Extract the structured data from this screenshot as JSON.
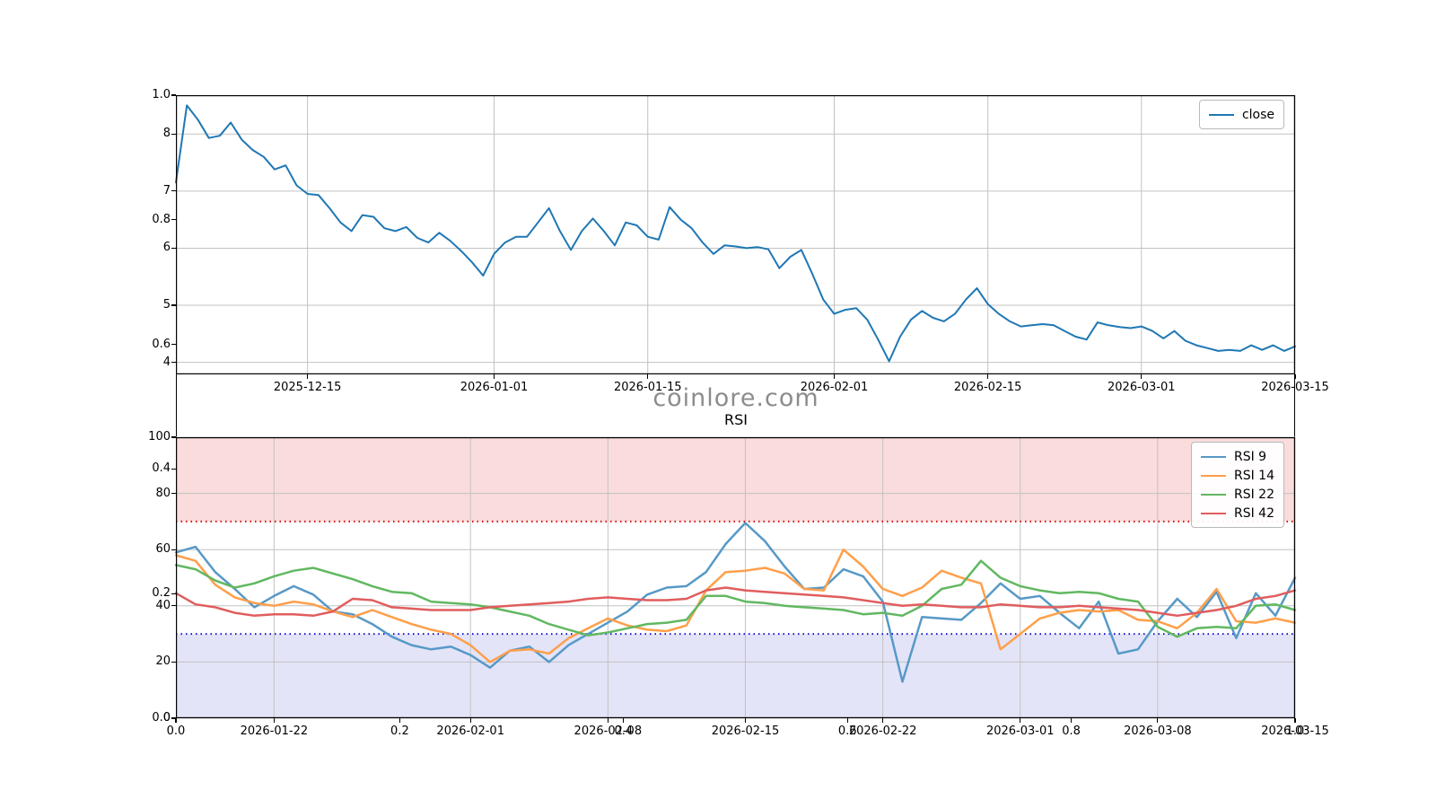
{
  "watermark": {
    "text": "coinlore.com"
  },
  "overlay_axis": {
    "xticks": [
      {
        "pos": 0.0,
        "label": "0.0"
      },
      {
        "pos": 0.2,
        "label": "0.2"
      },
      {
        "pos": 0.4,
        "label": "0.4"
      },
      {
        "pos": 0.6,
        "label": "0.6"
      },
      {
        "pos": 0.8,
        "label": "0.8"
      },
      {
        "pos": 1.0,
        "label": "1.0"
      }
    ],
    "yticks": [
      {
        "pos": 0.0,
        "label": "0.0"
      },
      {
        "pos": 0.2,
        "label": "0.2"
      },
      {
        "pos": 0.4,
        "label": "0.4"
      },
      {
        "pos": 0.6,
        "label": "0.6"
      },
      {
        "pos": 0.8,
        "label": "0.8"
      },
      {
        "pos": 1.0,
        "label": "1.0"
      }
    ]
  },
  "chart_data": [
    {
      "type": "line",
      "title": "",
      "x_start": "2025-12-03",
      "x_end": "2026-03-15",
      "x_freq": "daily",
      "grid": true,
      "legend_position": "upper right",
      "ylim": [
        3.79,
        8.68
      ],
      "xticks": [
        {
          "pos": 0.1176,
          "label": "2025-12-15"
        },
        {
          "pos": 0.2843,
          "label": "2026-01-01"
        },
        {
          "pos": 0.4216,
          "label": "2026-01-15"
        },
        {
          "pos": 0.5882,
          "label": "2026-02-01"
        },
        {
          "pos": 0.7255,
          "label": "2026-02-15"
        },
        {
          "pos": 0.8627,
          "label": "2026-03-01"
        },
        {
          "pos": 1.0,
          "label": "2026-03-15"
        }
      ],
      "yticks": [
        {
          "value": 4,
          "label": "4"
        },
        {
          "value": 5,
          "label": "5"
        },
        {
          "value": 6,
          "label": "6"
        },
        {
          "value": 7,
          "label": "7"
        },
        {
          "value": 8,
          "label": "8"
        }
      ],
      "legend": [
        {
          "label": "close",
          "color": "#1f77b4"
        }
      ],
      "series": [
        {
          "name": "close",
          "color": "#1f77b4",
          "width": 2,
          "values": [
            7.15,
            8.5,
            8.25,
            7.93,
            7.97,
            8.2,
            7.9,
            7.72,
            7.6,
            7.38,
            7.45,
            7.1,
            6.95,
            6.93,
            6.7,
            6.45,
            6.3,
            6.58,
            6.55,
            6.35,
            6.3,
            6.37,
            6.18,
            6.1,
            6.27,
            6.13,
            5.95,
            5.75,
            5.52,
            5.9,
            6.1,
            6.2,
            6.2,
            6.45,
            6.7,
            6.3,
            5.97,
            6.3,
            6.52,
            6.3,
            6.05,
            6.45,
            6.4,
            6.2,
            6.15,
            6.72,
            6.5,
            6.35,
            6.1,
            5.9,
            6.05,
            6.03,
            6.0,
            6.02,
            5.98,
            5.65,
            5.85,
            5.97,
            5.55,
            5.1,
            4.85,
            4.92,
            4.95,
            4.75,
            4.4,
            4.02,
            4.45,
            4.75,
            4.9,
            4.78,
            4.72,
            4.85,
            5.1,
            5.3,
            5.02,
            4.85,
            4.72,
            4.63,
            4.65,
            4.67,
            4.65,
            4.55,
            4.45,
            4.4,
            4.7,
            4.65,
            4.62,
            4.6,
            4.63,
            4.55,
            4.42,
            4.55,
            4.38,
            4.3,
            4.25,
            4.2,
            4.22,
            4.2,
            4.3,
            4.22,
            4.3,
            4.2,
            4.28
          ]
        }
      ]
    },
    {
      "type": "line",
      "title": "RSI",
      "x_start": "2026-01-17",
      "x_end": "2026-03-15",
      "x_freq": "daily",
      "grid": true,
      "legend_position": "upper right",
      "ylim": [
        0,
        100
      ],
      "xticks": [
        {
          "pos": 0.0877,
          "label": "2026-01-22"
        },
        {
          "pos": 0.2632,
          "label": "2026-02-01"
        },
        {
          "pos": 0.386,
          "label": "2026-02-08"
        },
        {
          "pos": 0.5088,
          "label": "2026-02-15"
        },
        {
          "pos": 0.6316,
          "label": "2026-02-22"
        },
        {
          "pos": 0.7544,
          "label": "2026-03-01"
        },
        {
          "pos": 0.8772,
          "label": "2026-03-08"
        },
        {
          "pos": 1.0,
          "label": "2026-03-15"
        }
      ],
      "yticks": [
        {
          "value": 0,
          "label": "0"
        },
        {
          "value": 20,
          "label": "20"
        },
        {
          "value": 40,
          "label": "40"
        },
        {
          "value": 60,
          "label": "60"
        },
        {
          "value": 80,
          "label": "80"
        },
        {
          "value": 100,
          "label": "100"
        }
      ],
      "bands": [
        {
          "from": 70,
          "to": 100,
          "color": "#fadcdc",
          "meaning": "overbought zone"
        },
        {
          "from": 0,
          "to": 30,
          "color": "#e4e4f8",
          "meaning": "oversold zone"
        }
      ],
      "hlines": [
        {
          "value": 70,
          "color": "#d40000",
          "style": "dotted"
        },
        {
          "value": 30,
          "color": "#1414cc",
          "style": "dotted"
        }
      ],
      "legend": [
        {
          "label": "RSI 9",
          "color": "#5799c7"
        },
        {
          "label": "RSI 14",
          "color": "#ff9f4a"
        },
        {
          "label": "RSI 22",
          "color": "#61b861"
        },
        {
          "label": "RSI 42",
          "color": "#e05d5e"
        }
      ],
      "series": [
        {
          "name": "RSI 9",
          "color": "#5799c7",
          "width": 2.5,
          "values": [
            59,
            61,
            52,
            46,
            39.5,
            43.5,
            47,
            44,
            38,
            37,
            33.5,
            29,
            26,
            24.5,
            25.5,
            22.5,
            18,
            24,
            25.5,
            20,
            26,
            30,
            34,
            38,
            44,
            46.5,
            47,
            52,
            62,
            69.5,
            63,
            54,
            46,
            46.5,
            53,
            50.5,
            41.5,
            13,
            36,
            35.5,
            35,
            41,
            48,
            42.5,
            43.5,
            37.5,
            32,
            41.5,
            23,
            24.5,
            34.5,
            42.5,
            36,
            45,
            28.5,
            44.5,
            36.5,
            50
          ]
        },
        {
          "name": "RSI 14",
          "color": "#ff9f4a",
          "width": 2.5,
          "values": [
            58,
            56,
            47.5,
            43,
            41,
            40,
            41.5,
            40.5,
            38,
            36,
            38.5,
            36,
            33.5,
            31.5,
            30,
            26,
            20,
            24,
            24.5,
            23,
            28.5,
            32,
            35.5,
            33,
            31.5,
            31,
            33,
            45.5,
            52,
            52.5,
            53.5,
            51.5,
            46,
            45.5,
            60,
            54,
            46,
            43.5,
            46.5,
            52.5,
            50,
            48,
            24.5,
            30,
            35.5,
            37.5,
            38.5,
            38,
            38.5,
            35,
            34.5,
            32,
            37.5,
            46,
            34.5,
            34,
            35.5,
            34
          ]
        },
        {
          "name": "RSI 22",
          "color": "#61b861",
          "width": 2.5,
          "values": [
            54.5,
            53,
            49,
            46.5,
            48,
            50.5,
            52.5,
            53.5,
            51.5,
            49.5,
            47,
            45,
            44.5,
            41.5,
            41,
            40.5,
            39.5,
            38,
            36.5,
            33.5,
            31.5,
            29.5,
            30.5,
            32,
            33.5,
            34,
            35,
            43.5,
            43.5,
            41.5,
            41,
            40,
            39.5,
            39,
            38.5,
            37,
            37.5,
            36.5,
            40,
            46,
            47.5,
            56,
            50,
            47,
            45.5,
            44.5,
            45,
            44.5,
            42.5,
            41.5,
            32.5,
            29,
            32,
            32.5,
            32,
            40,
            40.5,
            38.5
          ]
        },
        {
          "name": "RSI 42",
          "color": "#e05d5e",
          "width": 2.5,
          "values": [
            44.5,
            40.5,
            39.5,
            37.5,
            36.5,
            37,
            37,
            36.5,
            38,
            42.5,
            42,
            39.5,
            39,
            38.5,
            38.5,
            38.5,
            39.5,
            40,
            40.5,
            41,
            41.5,
            42.5,
            43,
            42.5,
            42,
            42,
            42.5,
            45.5,
            46.5,
            45.5,
            45,
            44.5,
            44,
            43.5,
            43,
            42,
            41,
            40,
            40.5,
            40,
            39.5,
            39.5,
            40.5,
            40,
            39.5,
            39.5,
            40,
            39.5,
            39,
            38.5,
            37.5,
            36.5,
            37.5,
            38.5,
            40,
            42.5,
            43.5,
            45.5
          ]
        }
      ]
    }
  ]
}
